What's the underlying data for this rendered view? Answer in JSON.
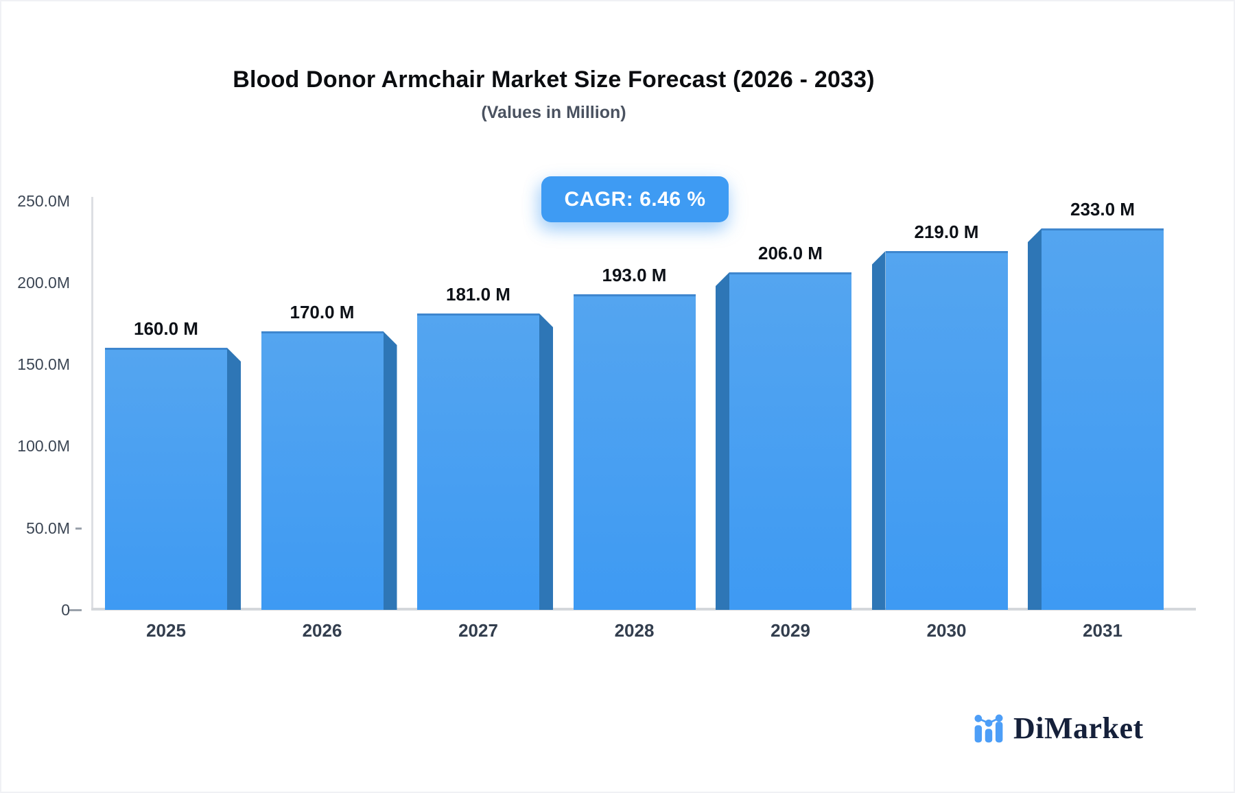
{
  "title": "Blood Donor Armchair Market Size Forecast (2026 - 2033)",
  "subtitle": "(Values in Million)",
  "cagr_badge": "CAGR: 6.46 %",
  "brand": {
    "name": "DiMarket"
  },
  "chart_data": {
    "type": "bar",
    "title": "Blood Donor Armchair Market Size Forecast (2026 - 2033)",
    "subtitle": "(Values in Million)",
    "unit": "Million",
    "cagr": "6.46 %",
    "categories": [
      "2025",
      "2026",
      "2027",
      "2028",
      "2029",
      "2030",
      "2031"
    ],
    "values": [
      160,
      170,
      181,
      193,
      206,
      219,
      233
    ],
    "value_labels": [
      "160.0 M",
      "170.0 M",
      "181.0 M",
      "193.0 M",
      "206.0 M",
      "219.0 M",
      "233.0 M"
    ],
    "y_tick_labels": [
      "250.0M",
      "200.0M",
      "150.0M",
      "100.0M",
      "50.0M",
      "0"
    ],
    "y_tick_values": [
      250,
      200,
      150,
      100,
      50,
      0
    ],
    "ylim": [
      0,
      250
    ],
    "xlabel": "",
    "ylabel": "",
    "grid": false,
    "legend": false,
    "bar_style": "3d-beveled, side shading faces center column"
  },
  "colors": {
    "accent": "#3E9BF3",
    "bar_face_top": "#54A5F0",
    "bar_face_bottom": "#3E9AF3",
    "bar_side": "#2E76B6",
    "bar_top_edge": "#3E86CE",
    "axis_line": "#DDDFE3",
    "baseline": "#D4D7DB",
    "tick": "#9AA1AB",
    "title_color": "#0B0D10",
    "subtitle_color": "#4A5260",
    "axis_label": "#3C4654",
    "year_label": "#333E4E",
    "value_label": "#0D1117",
    "logo_navy": "#15203A",
    "logo_blue": "#4D9EF7"
  }
}
